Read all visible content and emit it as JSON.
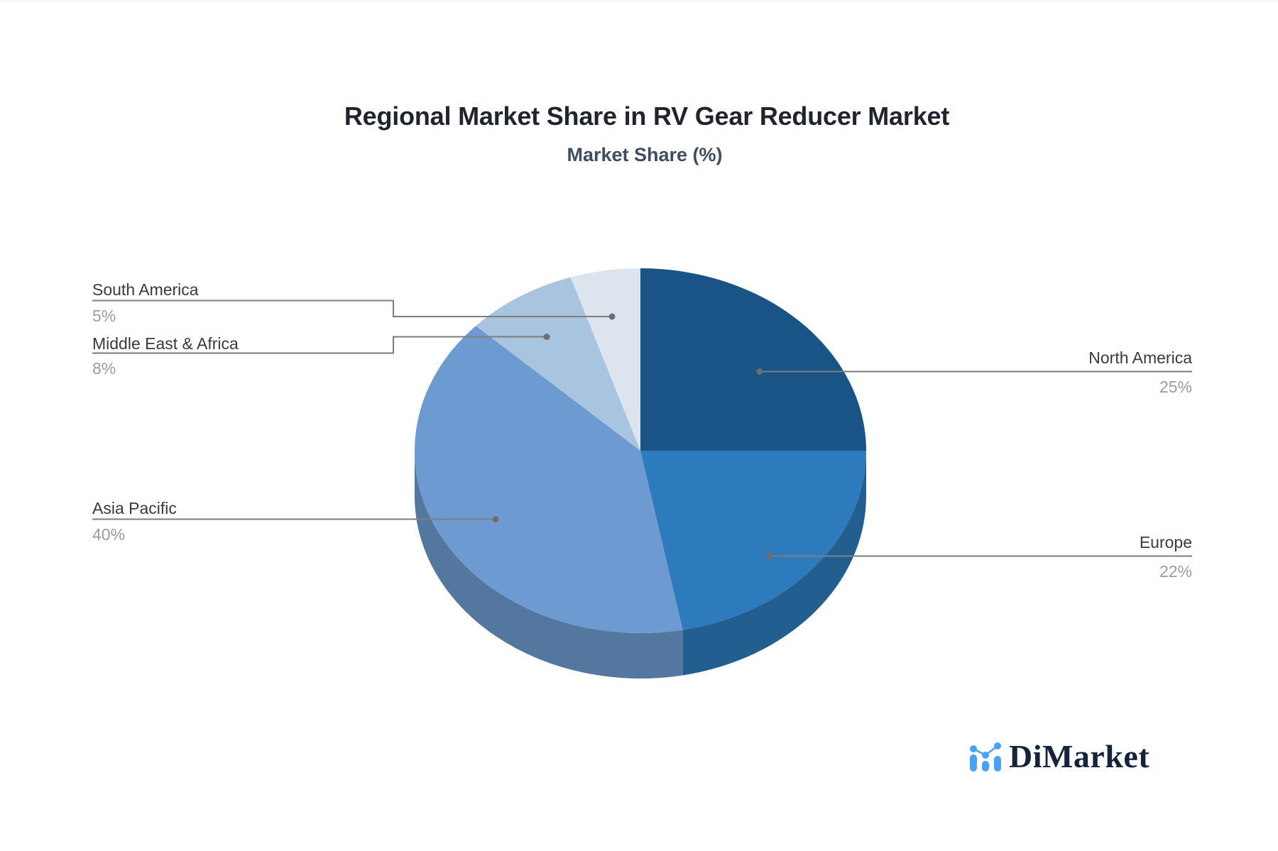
{
  "title": "Regional Market Share in RV Gear Reducer Market",
  "subtitle": "Market Share (%)",
  "chart_data": {
    "type": "pie",
    "title": "Regional Market Share in RV Gear Reducer Market",
    "subtitle": "Market Share (%)",
    "unit": "%",
    "start_angle": "12-oclock",
    "direction": "clockwise",
    "style": "3d",
    "legend_position": "callout-labels",
    "slices": [
      {
        "label": "North America",
        "value": 25,
        "value_text": "25%",
        "color": "#1a5486",
        "label_side": "right"
      },
      {
        "label": "Europe",
        "value": 22,
        "value_text": "22%",
        "color": "#2d7abc",
        "label_side": "right"
      },
      {
        "label": "Asia Pacific",
        "value": 40,
        "value_text": "40%",
        "color": "#6d9ad0",
        "label_side": "left"
      },
      {
        "label": "Middle East & Africa",
        "value": 8,
        "value_text": "8%",
        "color": "#a8c4df",
        "label_side": "left"
      },
      {
        "label": "South America",
        "value": 5,
        "value_text": "5%",
        "color": "#dde4ee",
        "label_side": "left"
      }
    ]
  },
  "watermark": {
    "text": "DiMarket",
    "icon": "bar-line-chart-icon"
  },
  "colors": {
    "background": "#ffffff",
    "title": "#20242e",
    "subtitle": "#3f4d5f",
    "label_text": "#3a3a3a",
    "value_text": "#9b9b9b",
    "connector": "#7d7d7d",
    "connector_dot": "#6e6e6e",
    "logo_blue": "#4aa0f5",
    "logo_navy": "#16233d"
  }
}
